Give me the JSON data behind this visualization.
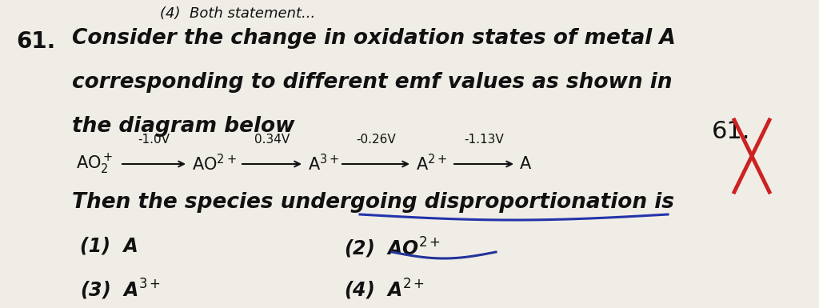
{
  "bg_color": "#f0ede6",
  "text_color": "#111111",
  "q_number_top": "(4)  Both statement...",
  "q_number": "61.",
  "q_text_line1": "Consider the change in oxidation states of metal A",
  "q_text_line2": "corresponding to different emf values as shown in",
  "q_text_line3": "the diagram below",
  "then_line": "Then the species undergoing disproportionation is",
  "opt1": "(1)  A",
  "opt3": "(3)  A",
  "side_number": "61.",
  "cross_color": "#cc2222",
  "underline_color": "#2233aa",
  "arrow_color": "#223399",
  "font_size_title": 19,
  "font_size_reaction": 15,
  "font_size_options": 17,
  "font_size_top": 13
}
